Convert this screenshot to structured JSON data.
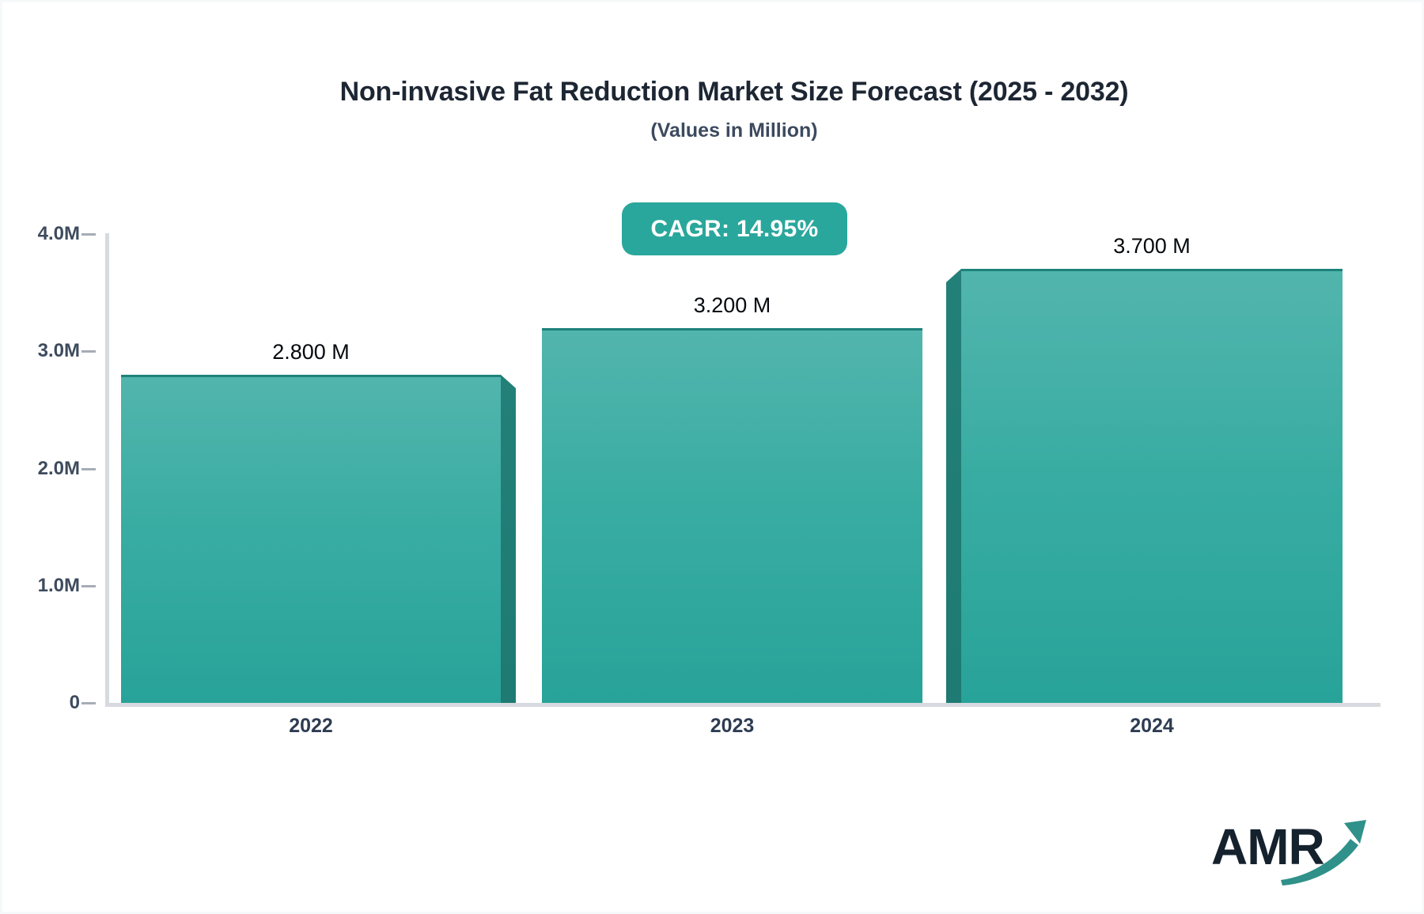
{
  "header": {
    "title": "Non-invasive Fat Reduction Market Size Forecast (2025 - 2032)",
    "subtitle": "(Values in Million)"
  },
  "badge": {
    "label": "CAGR: 14.95%",
    "background": "#2aa79c",
    "text_color": "#ffffff"
  },
  "chart_data": {
    "type": "bar",
    "title": "Non-invasive Fat Reduction Market Size Forecast (2025 - 2032)",
    "subtitle": "(Values in Million)",
    "unit": "Million",
    "cagr": "14.95%",
    "categories": [
      "2022",
      "2023",
      "2024"
    ],
    "values": [
      2.8,
      3.2,
      3.7
    ],
    "value_labels": [
      "2.800 M",
      "3.200 M",
      "3.700 M"
    ],
    "ylim": [
      0,
      4.0
    ],
    "ytick_values": [
      4.0,
      3.0,
      2.0,
      1.0,
      0
    ],
    "ytick_labels": [
      "4.0M",
      "3.0M",
      "2.0M",
      "1.0M",
      "0"
    ],
    "grid": false,
    "legend": false,
    "colors": {
      "bar_gradient_top": "#52b5ad",
      "bar_gradient_bottom": "#28a399",
      "bar_top_edge": "#1d837b",
      "bar_3d_side": "#1f7c74",
      "axis_line": "#d7dade",
      "tick_dash": "#a6adb6",
      "axis_text": "#3e4b5e",
      "value_label_text": "#05090d"
    }
  },
  "logo": {
    "text": "AMR",
    "text_color": "#15222e",
    "arrow_color": "#2f9189"
  }
}
